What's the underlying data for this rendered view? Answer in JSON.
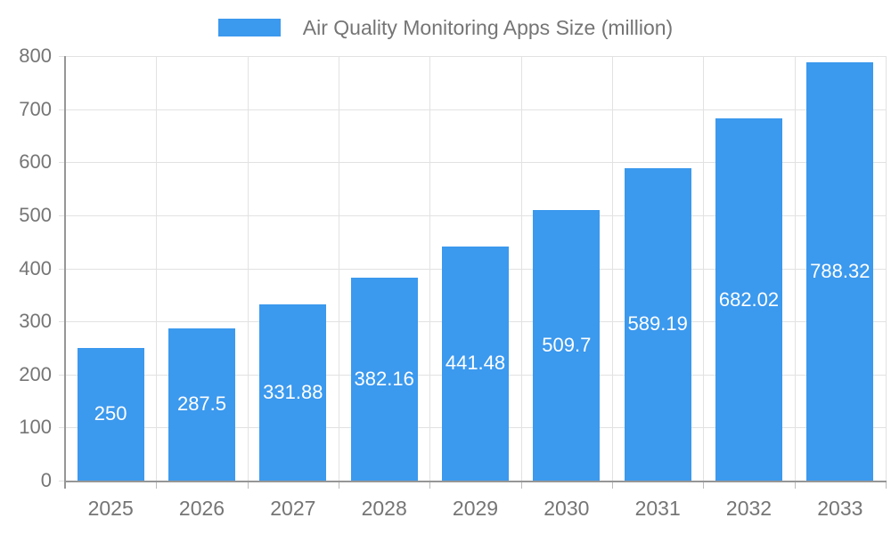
{
  "chart_data": {
    "type": "bar",
    "title": "Air Quality Monitoring Apps Size (million)",
    "categories": [
      "2025",
      "2026",
      "2027",
      "2028",
      "2029",
      "2030",
      "2031",
      "2032",
      "2033"
    ],
    "values": [
      250,
      287.5,
      331.88,
      382.16,
      441.48,
      509.7,
      589.19,
      682.02,
      788.32
    ],
    "xlabel": "",
    "ylabel": "",
    "ylim": [
      0,
      800
    ],
    "yticks": [
      0,
      100,
      200,
      300,
      400,
      500,
      600,
      700,
      800
    ],
    "grid": "horizontal and vertical gridlines on",
    "legend_position": "top-center",
    "colors": {
      "bar": "#3B99EE",
      "value_label": "#FFFFFF",
      "axis_text": "#757575",
      "gridline": "#E2E2E2",
      "axis_line": "#969696",
      "tick": "#BBBBBB",
      "background": "#FFFFFF"
    }
  }
}
